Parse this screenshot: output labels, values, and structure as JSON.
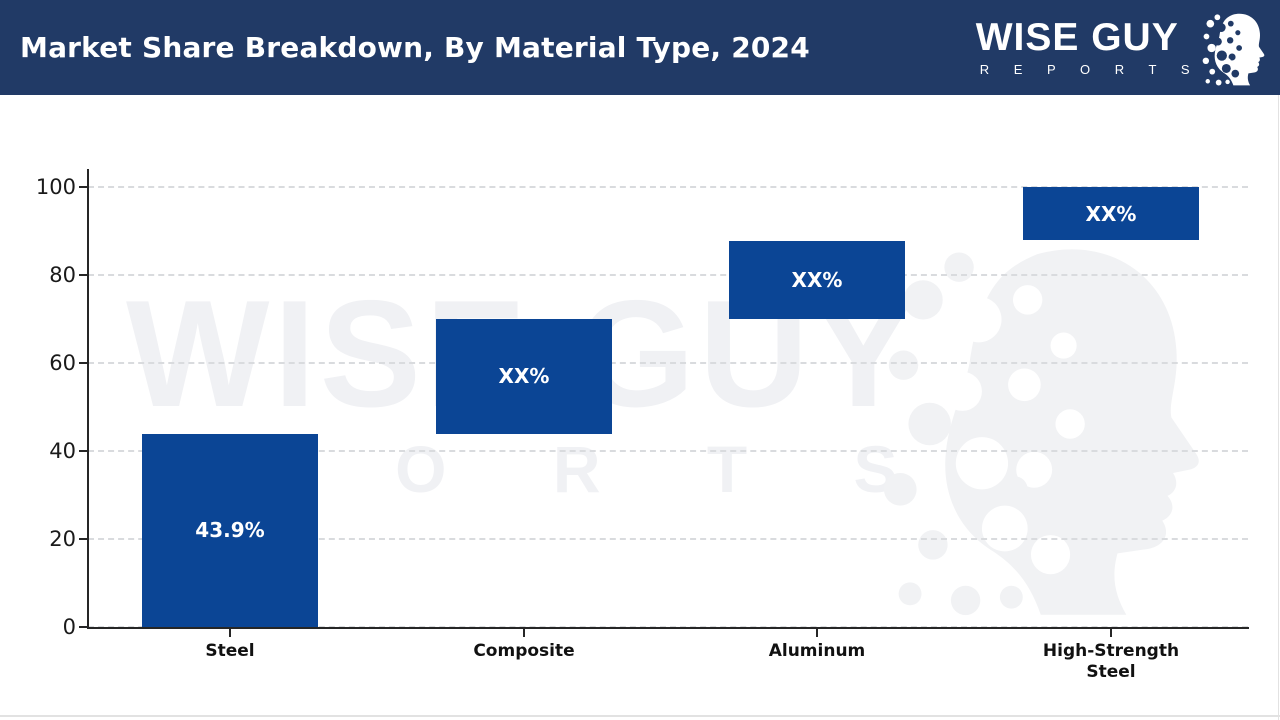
{
  "header": {
    "title": "Market Share Breakdown, By Material Type, 2024",
    "background": "#213a66",
    "logo": {
      "line1": "WISE GUY",
      "line2": "R E P O R T S"
    }
  },
  "watermark": {
    "line1": "WISE GUY",
    "line2": "P O R T S"
  },
  "chart_data": {
    "type": "bar",
    "subtype": "waterfall",
    "title": "Market Share Breakdown, By Material Type, 2024",
    "xlabel": "",
    "ylabel": "",
    "categories": [
      "Steel",
      "Composite",
      "Aluminum",
      "High-Strength Steel"
    ],
    "segments": [
      {
        "category": "Steel",
        "start": 0,
        "end": 43.9,
        "label": "43.9%"
      },
      {
        "category": "Composite",
        "start": 43.9,
        "end": 70.0,
        "label": "XX%"
      },
      {
        "category": "Aluminum",
        "start": 70.0,
        "end": 87.7,
        "label": "XX%"
      },
      {
        "category": "High-Strength Steel",
        "start": 87.9,
        "end": 100.0,
        "label": "XX%"
      }
    ],
    "y_ticks": [
      0,
      20,
      40,
      60,
      80,
      100
    ],
    "ylim": [
      0,
      104
    ],
    "grid": "horizontal-dashed",
    "legend": "none",
    "bar_color": "#0b4595",
    "bar_label_color": "#ffffff",
    "grid_color": "#d9dbde",
    "axis_color": "#262626"
  }
}
